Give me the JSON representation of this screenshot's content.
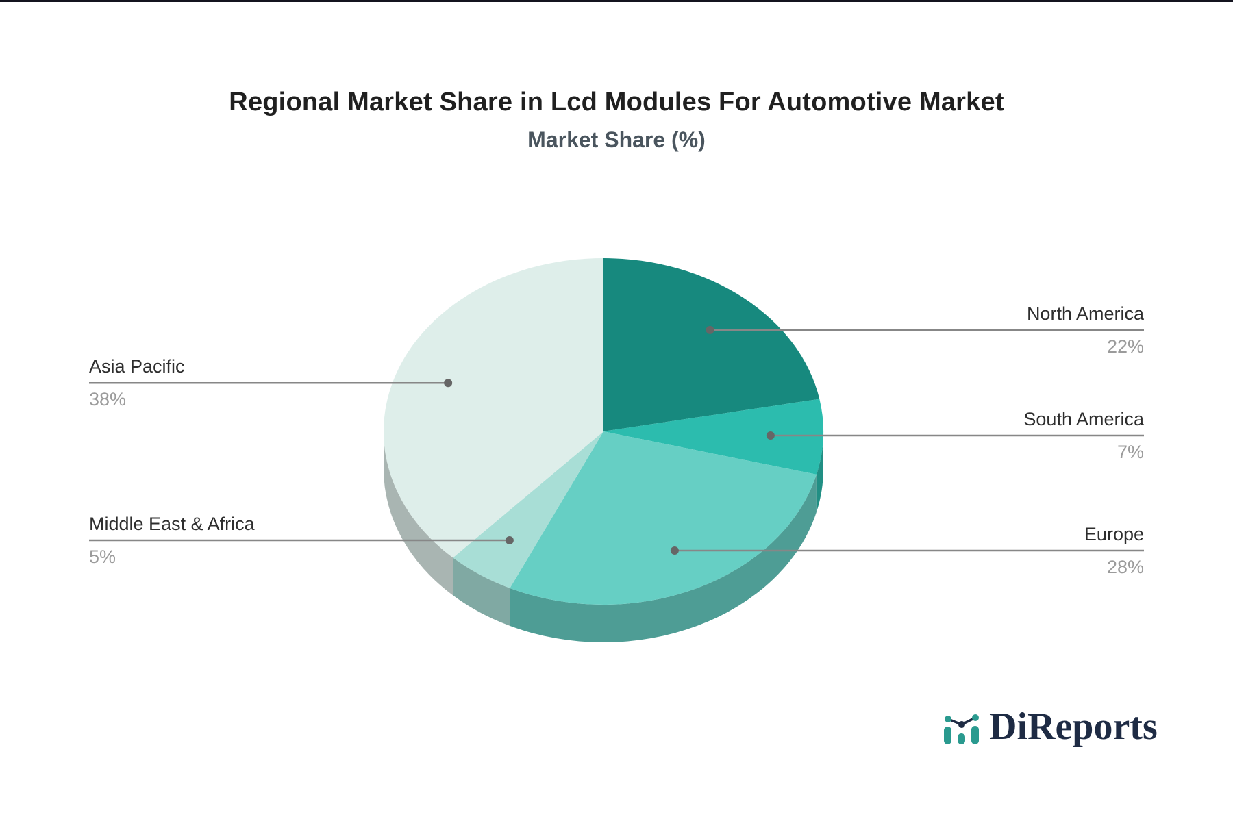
{
  "page": {
    "background": "#ffffff",
    "top_border_color": "#14141f"
  },
  "chart_data": {
    "type": "pie",
    "title": "Regional Market Share in Lcd Modules For Automotive Market",
    "subtitle": "Market Share (%)",
    "unit": "%",
    "labels": [
      "North America",
      "South America",
      "Europe",
      "Middle East & Africa",
      "Asia Pacific"
    ],
    "values": [
      22,
      7,
      28,
      5,
      38
    ],
    "display_values": [
      "22%",
      "7%",
      "28%",
      "5%",
      "38%"
    ],
    "colors": [
      "#17897e",
      "#2cbcae",
      "#66cfc4",
      "#a8ded6",
      "#deeeea"
    ],
    "start_angle_deg": 0,
    "direction": "clockwise",
    "effect": "3d-extruded",
    "legend_position": "callout-labels",
    "callout_line_color": "#878787",
    "callout_dot_color": "#666666",
    "label_name_color": "#2e2e2e",
    "label_value_color": "#9b9b9b"
  },
  "branding": {
    "logo_text": "DiReports",
    "logo_bar_color": "#2a9a8f",
    "logo_line_color": "#1e2b44"
  }
}
